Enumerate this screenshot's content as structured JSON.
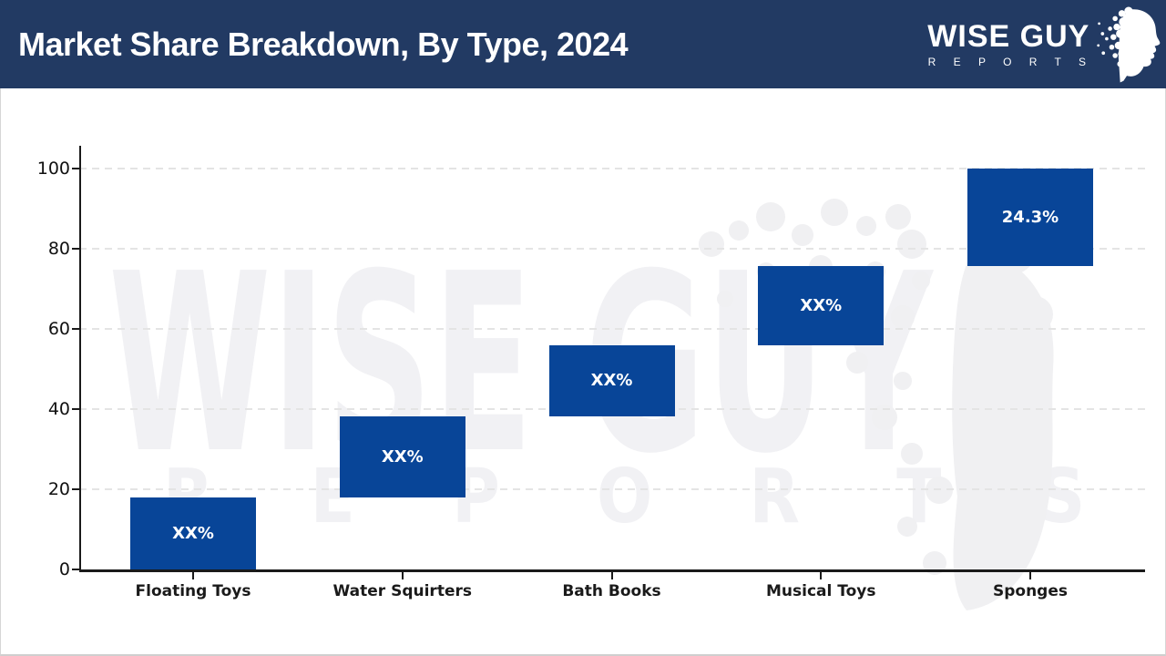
{
  "header": {
    "title": "Market Share Breakdown, By Type, 2024",
    "logo": {
      "line1": "WISE GUY",
      "line2": "R E P O R T S"
    }
  },
  "watermark": {
    "line1": "WISE GUY",
    "line2": "R E P O R T S"
  },
  "chart_data": {
    "type": "bar",
    "variant": "floating-waterfall",
    "title": "Market Share Breakdown, By Type, 2024",
    "categories": [
      "Floating Toys",
      "Water Squirters",
      "Bath Books",
      "Musical Toys",
      "Sponges"
    ],
    "bars": [
      {
        "category": "Floating Toys",
        "start": 0,
        "end": 18,
        "label": "XX%"
      },
      {
        "category": "Water Squirters",
        "start": 18,
        "end": 38.2,
        "label": "XX%"
      },
      {
        "category": "Bath Books",
        "start": 38.2,
        "end": 56,
        "label": "XX%"
      },
      {
        "category": "Musical Toys",
        "start": 56,
        "end": 75.7,
        "label": "XX%"
      },
      {
        "category": "Sponges",
        "start": 75.7,
        "end": 100,
        "label": "24.3%"
      }
    ],
    "y_ticks": [
      0,
      20,
      40,
      60,
      80,
      100
    ],
    "ylim": [
      0,
      105
    ],
    "xlabel": "",
    "ylabel": "",
    "grid": "horizontal-dashed",
    "legend": null,
    "colors": {
      "bar": "#084598",
      "bar_label": "#ffffff",
      "axis": "#1a1a1a",
      "grid": "#e4e4e4",
      "header_bg": "#223a63",
      "watermark": "#f1f1f4"
    }
  }
}
